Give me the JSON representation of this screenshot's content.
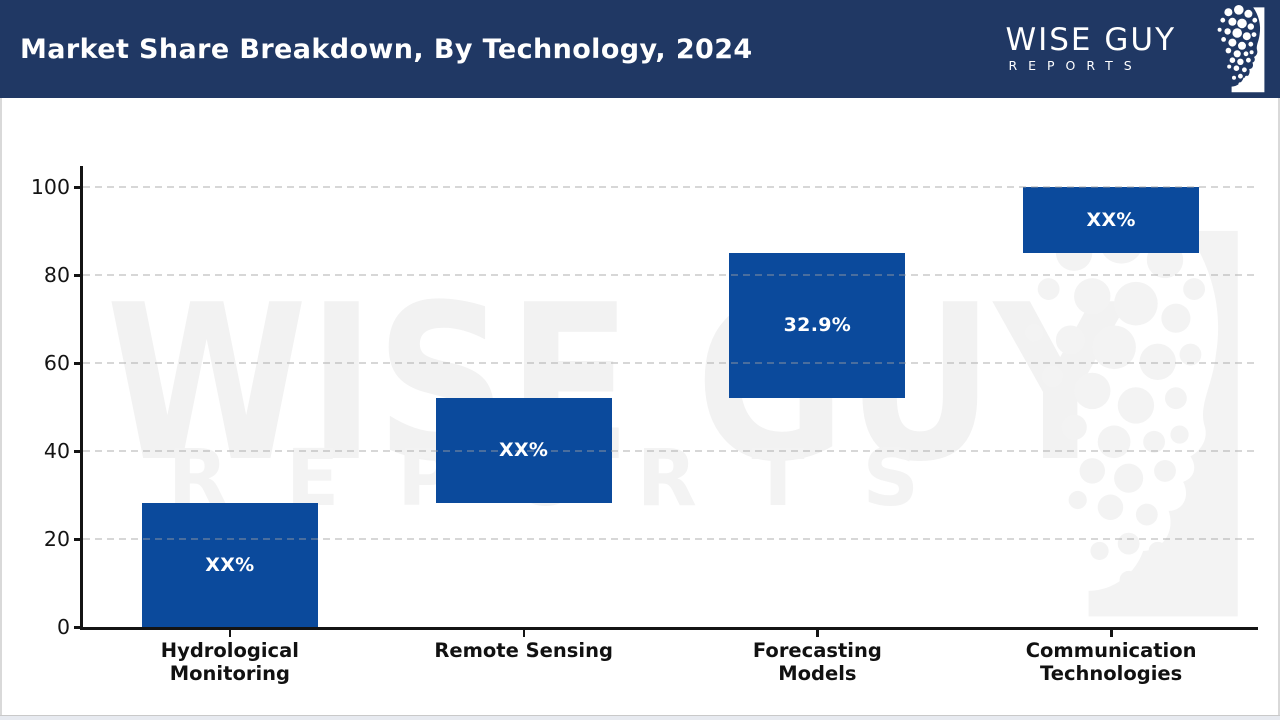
{
  "header": {
    "title": "Market Share Breakdown, By Technology, 2024",
    "logo": {
      "line1": "WISE GUY",
      "line2": "REPORTS"
    }
  },
  "watermark": {
    "line1": "WISE GUY",
    "line2": "REPORTS"
  },
  "colors": {
    "header_bg": "#203864",
    "bar": "#0b4a9c",
    "bar_label": "#ffffff",
    "axis": "#141414",
    "gridline": "#d7d7d7",
    "watermark": "#f2f2f2"
  },
  "chart_data": {
    "type": "bar",
    "subtype": "floating-segment-breakdown",
    "title": "Market Share Breakdown, By Technology, 2024",
    "categories": [
      "Hydrological Monitoring",
      "Remote Sensing",
      "Forecasting Models",
      "Communication Technologies"
    ],
    "segments": [
      {
        "category": "Hydrological Monitoring",
        "start": 0,
        "end": 28.2,
        "value": 28.2,
        "label": "XX%"
      },
      {
        "category": "Remote Sensing",
        "start": 28.2,
        "end": 52.1,
        "value": 23.9,
        "label": "XX%"
      },
      {
        "category": "Forecasting Models",
        "start": 52.1,
        "end": 85.0,
        "value": 32.9,
        "label": "32.9%"
      },
      {
        "category": "Communication Technologies",
        "start": 85.0,
        "end": 100,
        "value": 15.0,
        "label": "XX%"
      }
    ],
    "xlabel": "",
    "ylabel": "",
    "ylim": [
      0,
      100
    ],
    "yticks": [
      0,
      20,
      40,
      60,
      80,
      100
    ],
    "grid": "horizontal dashed, drawn over bars",
    "legend": "none"
  }
}
